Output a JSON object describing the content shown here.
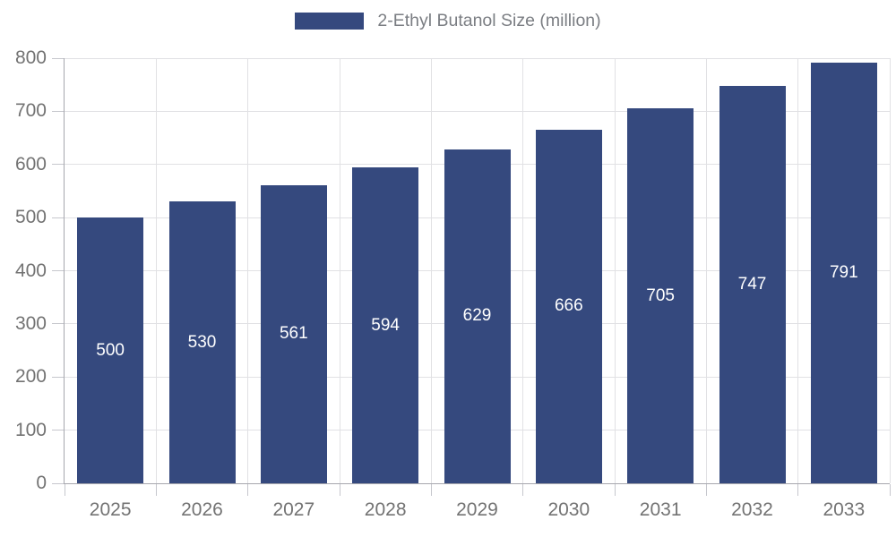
{
  "legend": {
    "label": "2-Ethyl Butanol Size (million)"
  },
  "chart_data": {
    "type": "bar",
    "title": "2-Ethyl Butanol Size (million)",
    "categories": [
      "2025",
      "2026",
      "2027",
      "2028",
      "2029",
      "2030",
      "2031",
      "2032",
      "2033"
    ],
    "series": [
      {
        "name": "2-Ethyl Butanol Size (million)",
        "values": [
          500,
          530,
          561,
          594,
          629,
          666,
          705,
          747,
          791
        ]
      }
    ],
    "value_labels_shown": true,
    "xlabel": "",
    "ylabel": "",
    "ylim": [
      0,
      800
    ],
    "y_ticks": [
      0,
      100,
      200,
      300,
      400,
      500,
      600,
      700,
      800
    ],
    "grid": "horizontal-lines-and-category-boundary-lines",
    "legend_position": "top-center",
    "colors": {
      "bar": "#35497E",
      "bar_label": "#ffffff",
      "axis_line": "#a6a7ae",
      "tick": "#c6c7cd",
      "grid_line": "#e1e1e4",
      "tick_label": "#737373",
      "legend_text": "#7b7e83",
      "background": "#ffffff"
    }
  }
}
